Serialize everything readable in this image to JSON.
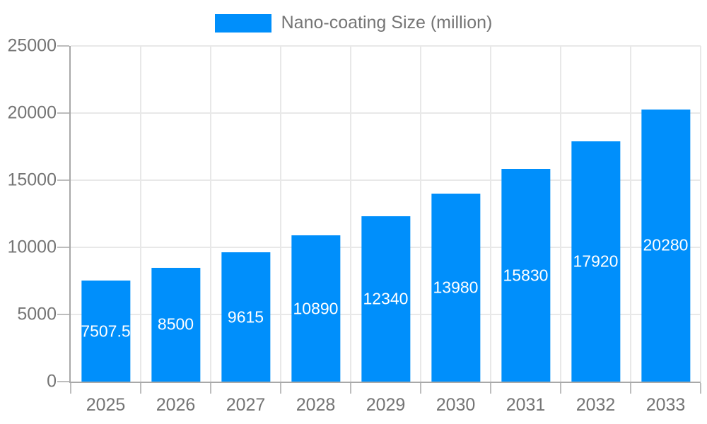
{
  "colors": {
    "bar": "#008FFB",
    "grid": "#e8e8e8",
    "axis": "#a8a8a8",
    "tick": "#bdbdbd",
    "text": "#757575",
    "value_text": "#ffffff",
    "background": "#ffffff"
  },
  "chart_data": {
    "type": "bar",
    "title": "Nano-coating Size (million)",
    "legend": {
      "label": "Nano-coating Size (million)",
      "position": "top"
    },
    "categories": [
      "2025",
      "2026",
      "2027",
      "2028",
      "2029",
      "2030",
      "2031",
      "2032",
      "2033"
    ],
    "series": [
      {
        "name": "Nano-coating Size (million)",
        "values": [
          7507.5,
          8500,
          9615,
          10890,
          12340,
          13980,
          15830,
          17920,
          20280
        ],
        "data_labels": [
          "7507.5",
          "8500",
          "9615",
          "10890",
          "12340",
          "13980",
          "15830",
          "17920",
          "20280"
        ]
      }
    ],
    "xlabel": "",
    "ylabel": "",
    "ylim": [
      0,
      25000
    ],
    "y_ticks": [
      0,
      5000,
      10000,
      15000,
      20000,
      25000
    ],
    "y_tick_labels": [
      "0",
      "5000",
      "10000",
      "15000",
      "20000",
      "25000"
    ],
    "grid": true,
    "legend_position": "top",
    "data_label_color": "#ffffff"
  }
}
